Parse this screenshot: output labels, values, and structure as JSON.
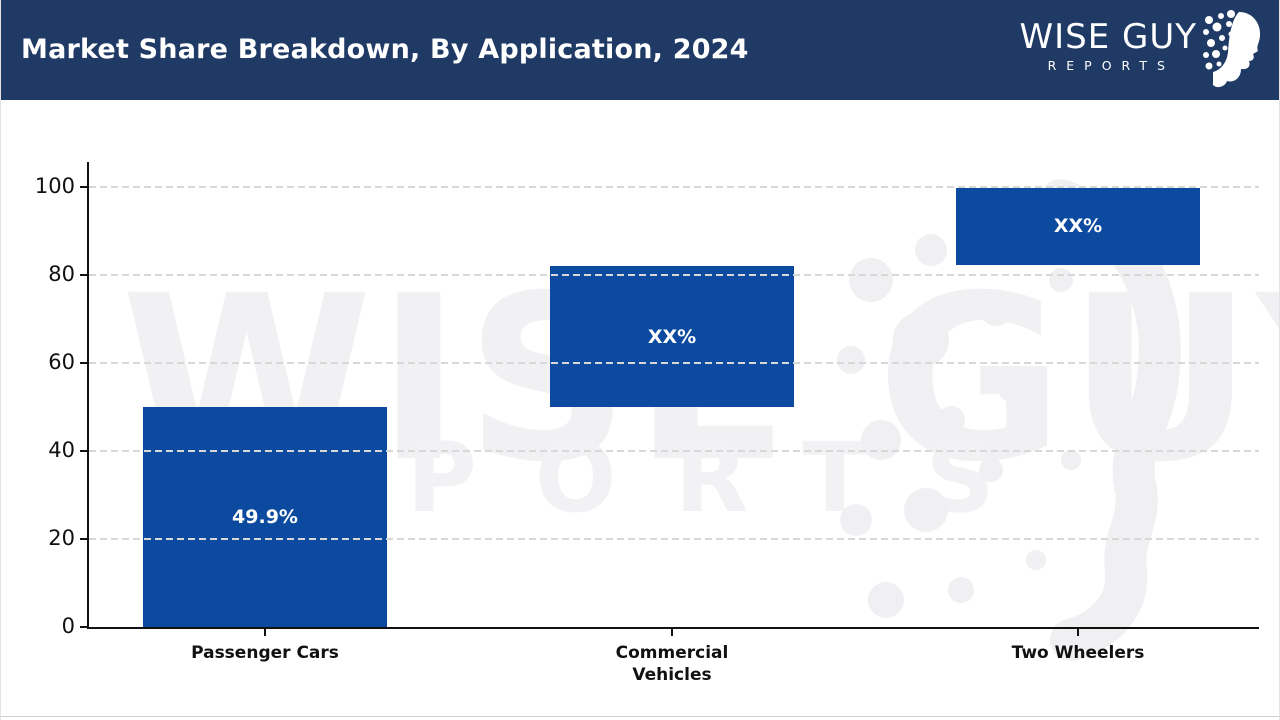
{
  "header": {
    "title": "Market Share Breakdown, By Application, 2024",
    "bg_color": "#203A66",
    "logo": {
      "name": "WISE GUY",
      "tagline": "REPORTS"
    }
  },
  "watermark": {
    "line1": "WISE GUY",
    "line2": "REPORTS"
  },
  "colors": {
    "header_bg": "#203A66",
    "bar": "#0B4A9E",
    "bar_label": "#ffffff",
    "grid": "#d8d8d8",
    "axis": "#111111",
    "watermark": "#f1f1f4"
  },
  "chart_data": {
    "type": "bar",
    "variant": "floating-percentage-stack",
    "title": "Market Share Breakdown, By Application, 2024",
    "categories": [
      "Passenger Cars",
      "Commercial\nVehicles",
      "Two Wheelers"
    ],
    "series": [
      {
        "name": "Market Share (%)",
        "segments": [
          {
            "category": "Passenger Cars",
            "label": "49.9%",
            "start": 0,
            "end": 49.9
          },
          {
            "category": "Commercial Vehicles",
            "label": "XX%",
            "start": 50,
            "end": 82
          },
          {
            "category": "Two Wheelers",
            "label": "XX%",
            "start": 82.3,
            "end": 99.8
          }
        ]
      }
    ],
    "bar_labels": [
      "49.9%",
      "XX%",
      "XX%"
    ],
    "xlabel": "",
    "ylabel": "",
    "ylim": [
      0,
      105
    ],
    "yticks": [
      0,
      20,
      40,
      60,
      80,
      100
    ],
    "grid": "horizontal-dashed",
    "legend": "none"
  }
}
